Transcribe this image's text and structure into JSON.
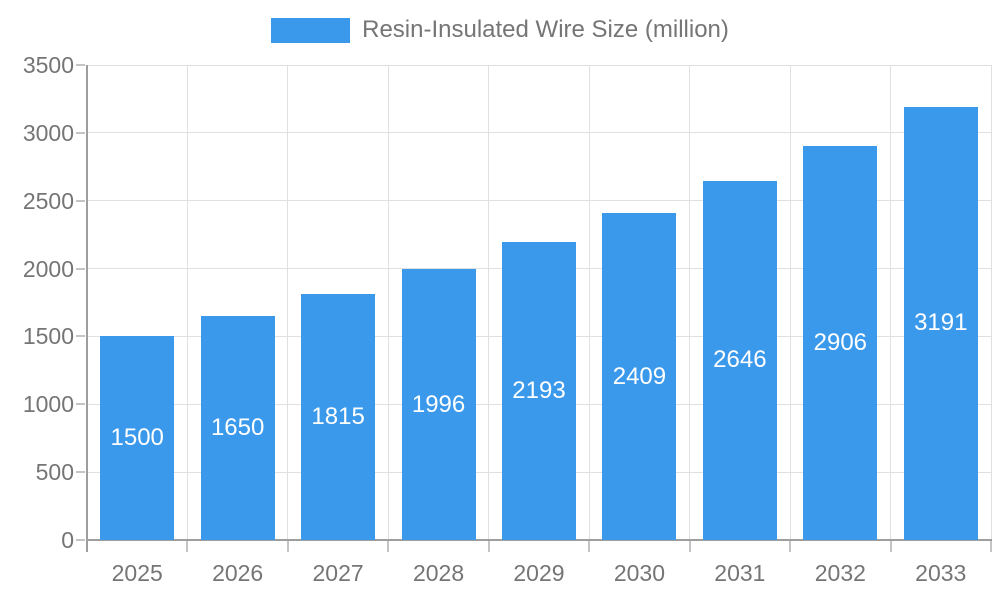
{
  "legend": {
    "label": "Resin-Insulated Wire Size (million)"
  },
  "colors": {
    "bar": "#3b99ec",
    "grid": "#e0e0e0",
    "tick": "#c4c4c4",
    "axis_line": "#9e9e9e",
    "axis_text": "#757575",
    "value_label": "#ffffff",
    "background": "#ffffff"
  },
  "chart_data": {
    "type": "bar",
    "title": "Resin-Insulated Wire Size (million)",
    "series_name": "Resin-Insulated Wire Size (million)",
    "categories": [
      "2025",
      "2026",
      "2027",
      "2028",
      "2029",
      "2030",
      "2031",
      "2032",
      "2033"
    ],
    "values": [
      1500,
      1650,
      1815,
      1996,
      2193,
      2409,
      2646,
      2906,
      3191
    ],
    "xlabel": "",
    "ylabel": "",
    "ylim": [
      0,
      3500
    ],
    "yticks": [
      0,
      500,
      1000,
      1500,
      2000,
      2500,
      3000,
      3500
    ],
    "grid": true,
    "legend_position": "top-center",
    "value_label_position": "inside-center"
  }
}
